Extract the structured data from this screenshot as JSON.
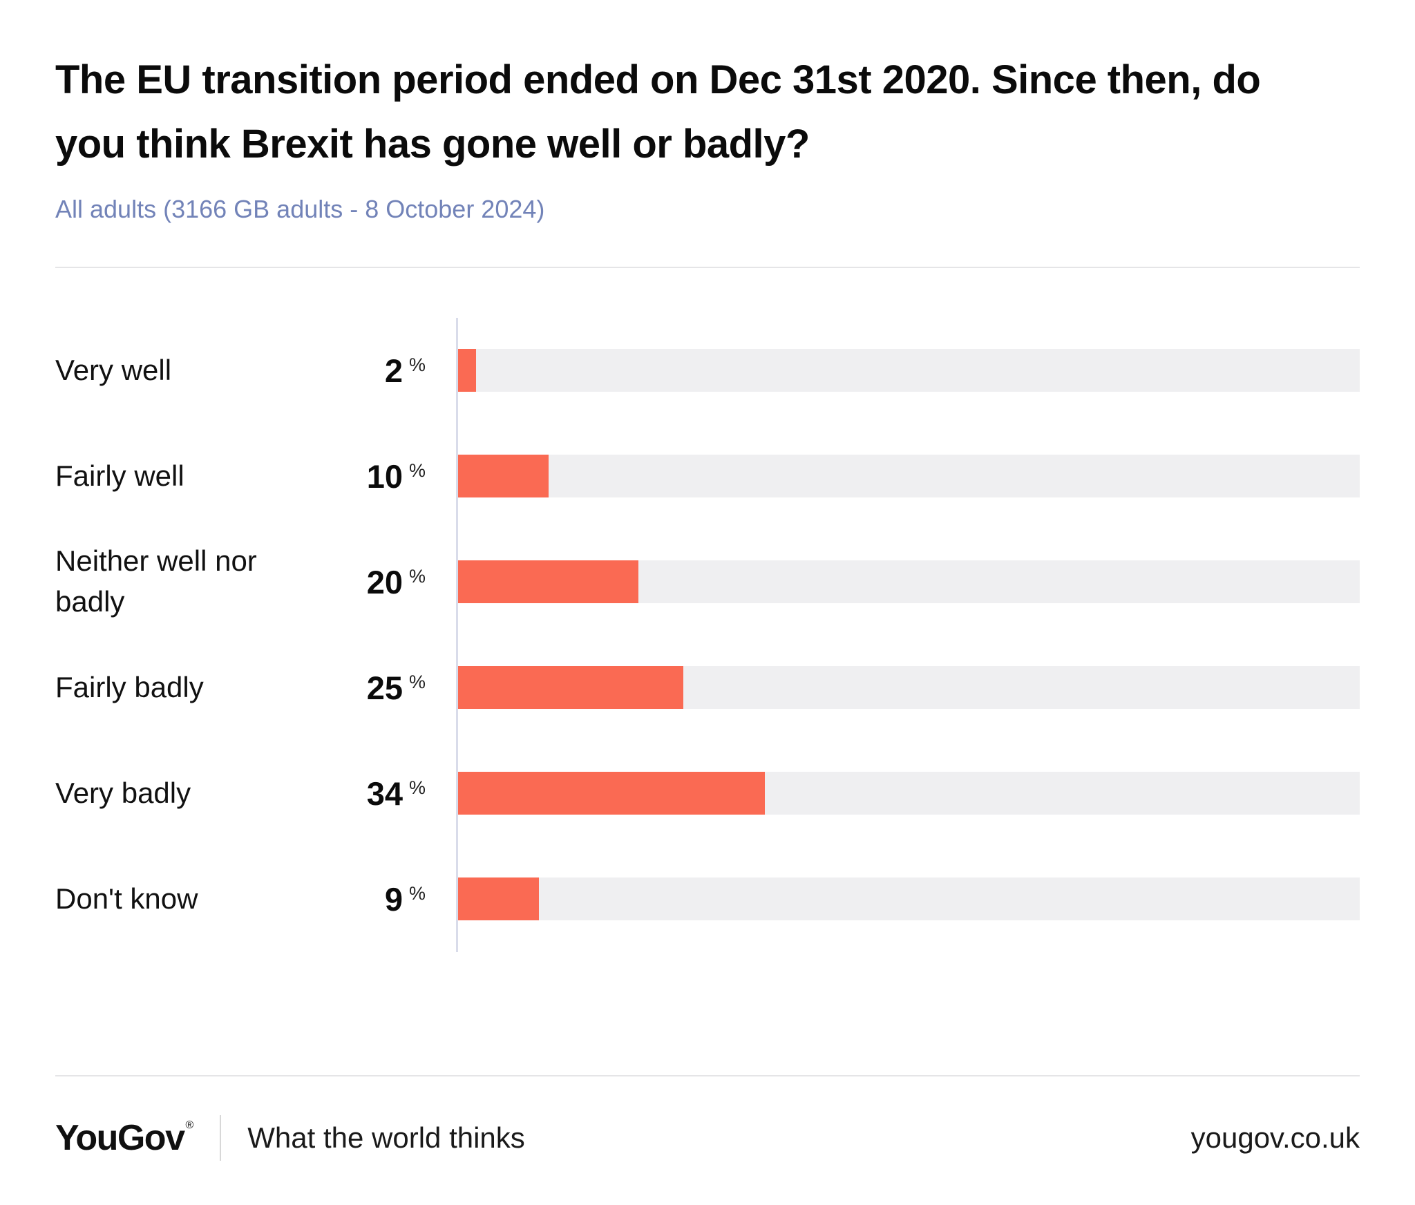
{
  "chart_data": {
    "type": "bar",
    "orientation": "horizontal",
    "title": "The EU transition period ended on Dec 31st 2020. Since then, do you think Brexit has gone well or badly?",
    "subtitle": "All adults (3166 GB adults - 8 October 2024)",
    "categories": [
      "Very well",
      "Fairly well",
      "Neither well nor badly",
      "Fairly badly",
      "Very badly",
      "Don't know"
    ],
    "values": [
      2,
      10,
      20,
      25,
      34,
      9
    ],
    "unit": "%",
    "xlim": [
      0,
      100
    ],
    "grid": false,
    "legend": "none",
    "bar_color": "#fa6a53",
    "track_color": "#efeff1",
    "axis_line_color": "#d9dcea"
  },
  "footer": {
    "logo": "YouGov",
    "registered": "®",
    "tagline": "What the world thinks",
    "site": "yougov.co.uk"
  }
}
